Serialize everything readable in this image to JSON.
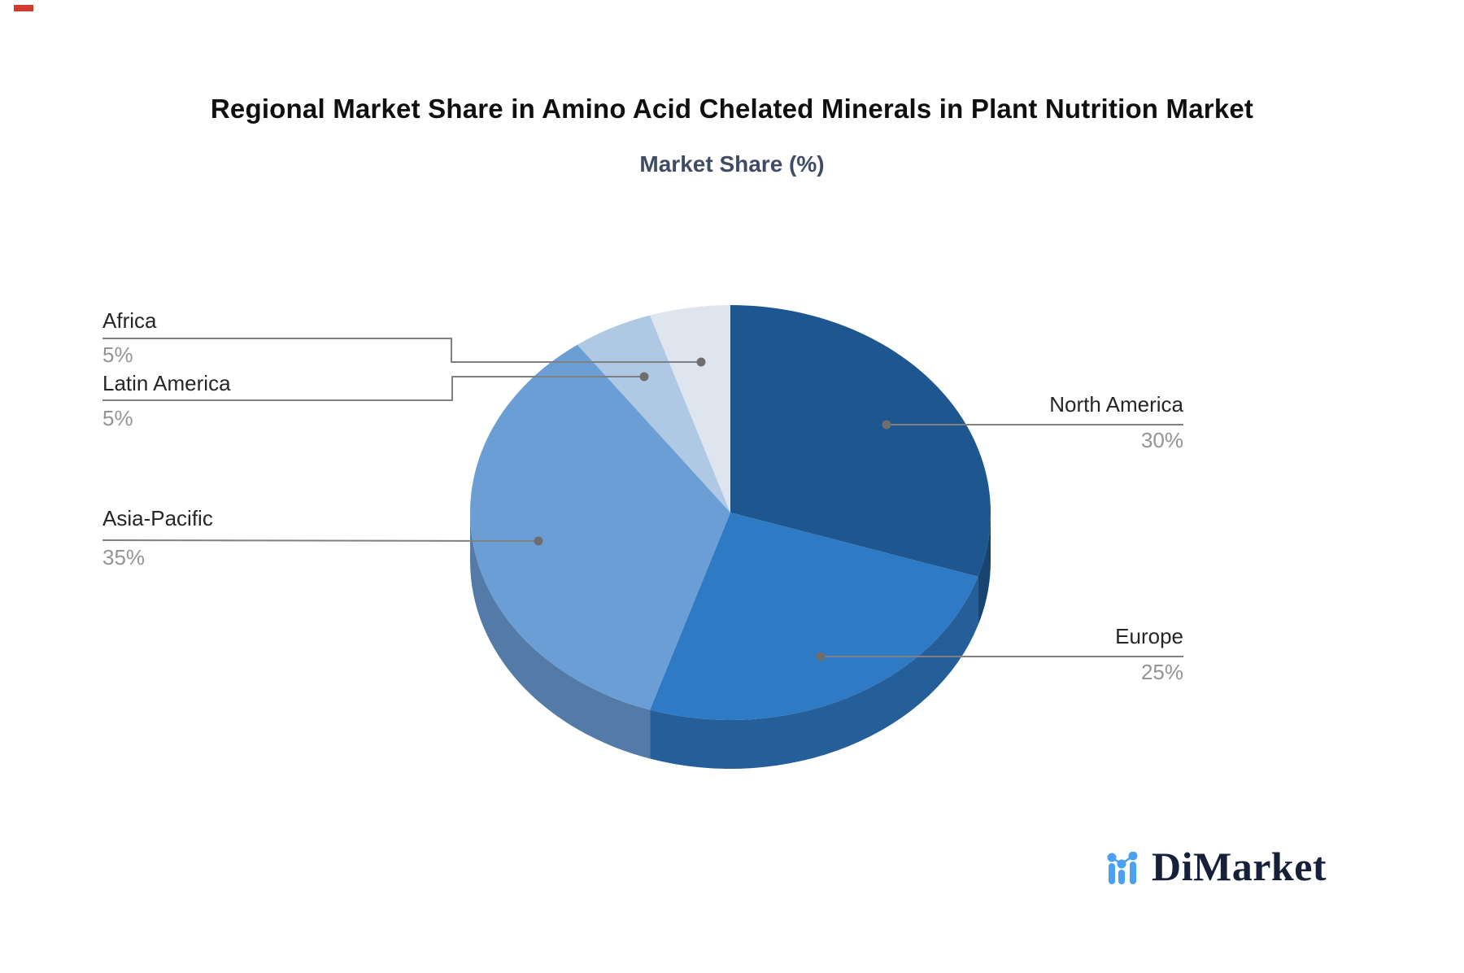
{
  "chart_data": {
    "type": "pie",
    "style": "3d",
    "title": "Regional Market Share in Amino Acid Chelated Minerals in Plant Nutrition Market",
    "subtitle": "Market Share (%)",
    "unit": "%",
    "start_angle_deg": 0,
    "direction": "clockwise",
    "legend": "callout-labels",
    "categories": [
      "North America",
      "Europe",
      "Asia-Pacific",
      "Latin America",
      "Africa"
    ],
    "values": [
      30,
      25,
      35,
      5,
      5
    ],
    "slices": [
      {
        "label": "North America",
        "value": 30,
        "value_label": "30%",
        "color": "#1E578F"
      },
      {
        "label": "Europe",
        "value": 25,
        "value_label": "25%",
        "color": "#2E7AC4"
      },
      {
        "label": "Asia-Pacific",
        "value": 35,
        "value_label": "35%",
        "color": "#6C9ED6"
      },
      {
        "label": "Latin America",
        "value": 5,
        "value_label": "5%",
        "color": "#AFC9E5"
      },
      {
        "label": "Africa",
        "value": 5,
        "value_label": "5%",
        "color": "#DFE5EE"
      }
    ]
  },
  "branding": {
    "logo_text": "DiMarket",
    "logo_accent_color": "#4AA1F1",
    "logo_text_color": "#16203A"
  },
  "colors": {
    "background": "#FFFFFF",
    "title": "#101010",
    "subtitle": "#3E4D63",
    "label": "#262626",
    "value": "#949494",
    "leader_line": "#808080",
    "leader_dot": "#6E6E6E"
  }
}
